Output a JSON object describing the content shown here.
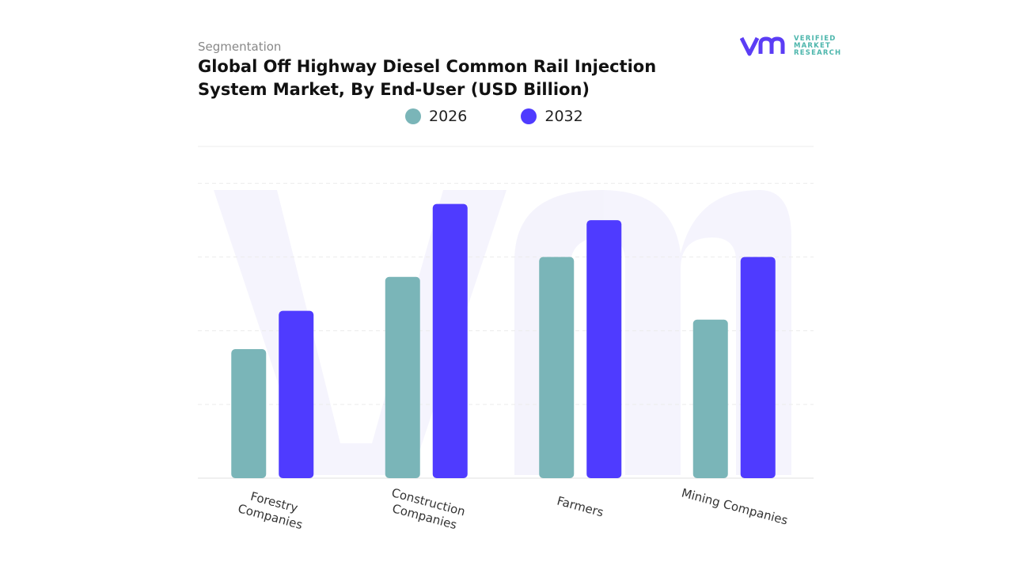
{
  "header": {
    "subtitle": "Segmentation",
    "title": "Global Off Highway Diesel Common Rail Injection System Market, By End-User (USD Billion)"
  },
  "logo": {
    "line1": "VERIFIED",
    "line2": "MARKET",
    "line3": "RESEARCH",
    "mark": "vmr"
  },
  "chart_data": {
    "type": "bar",
    "title": "Global Off Highway Diesel Common Rail Injection System Market, By End-User (USD Billion)",
    "categories": [
      "Forestry Companies",
      "Construction Companies",
      "Farmers",
      "Mining Companies"
    ],
    "series": [
      {
        "name": "2026",
        "color": "#7ab5b8",
        "values": [
          1.75,
          2.73,
          3.0,
          2.15
        ]
      },
      {
        "name": "2032",
        "color": "#4f3bff",
        "values": [
          2.27,
          3.72,
          3.5,
          3.0
        ]
      }
    ],
    "xlabel": "",
    "ylabel": "",
    "ylim": [
      0,
      4.5
    ],
    "grid": true,
    "legend": "top-center",
    "y_axis_labels_shown": false
  }
}
